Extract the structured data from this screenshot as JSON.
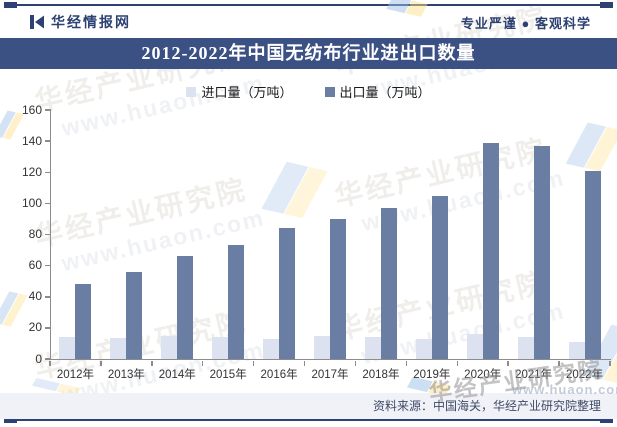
{
  "brand": {
    "site_name": "华经情报网",
    "tagline": "专业严谨 ● 客观科学"
  },
  "title": "2012-2022年中国无纺布行业进出口数量",
  "footer": {
    "source": "资料来源：中国海关，华经产业研究院整理"
  },
  "watermark": {
    "text": "华经产业研究院",
    "url": "www.huaon.com"
  },
  "colors": {
    "accent_navy": "#2D4272",
    "title_bar_bg": "#3B5184",
    "import_bar": "#DCE2F0",
    "export_bar": "#6A7EA4",
    "axis": "#8C8C8C",
    "footer_bg": "#F1F2F8",
    "wm_blue": "#9FC0E8",
    "wm_yellow": "#FFE08A"
  },
  "chart_data": {
    "type": "bar",
    "title": "2012-2022年中国无纺布行业进出口数量",
    "categories": [
      "2012年",
      "2013年",
      "2014年",
      "2015年",
      "2016年",
      "2017年",
      "2018年",
      "2019年",
      "2020年",
      "2021年",
      "2022年"
    ],
    "series": [
      {
        "key": "import",
        "name": "进口量（万吨）",
        "color": "#DCE2F0",
        "values": [
          14,
          13.5,
          15,
          14,
          13,
          15,
          14,
          13,
          16,
          14,
          11
        ]
      },
      {
        "key": "export",
        "name": "出口量（万吨）",
        "color": "#6A7EA4",
        "values": [
          48,
          56,
          66,
          73,
          84,
          90,
          97,
          105,
          139,
          137,
          121
        ]
      }
    ],
    "xlabel": "",
    "ylabel": "",
    "ylim": [
      0,
      160
    ],
    "yticks": [
      0,
      20,
      40,
      60,
      80,
      100,
      120,
      140,
      160
    ],
    "grid": false,
    "legend_position": "top"
  }
}
